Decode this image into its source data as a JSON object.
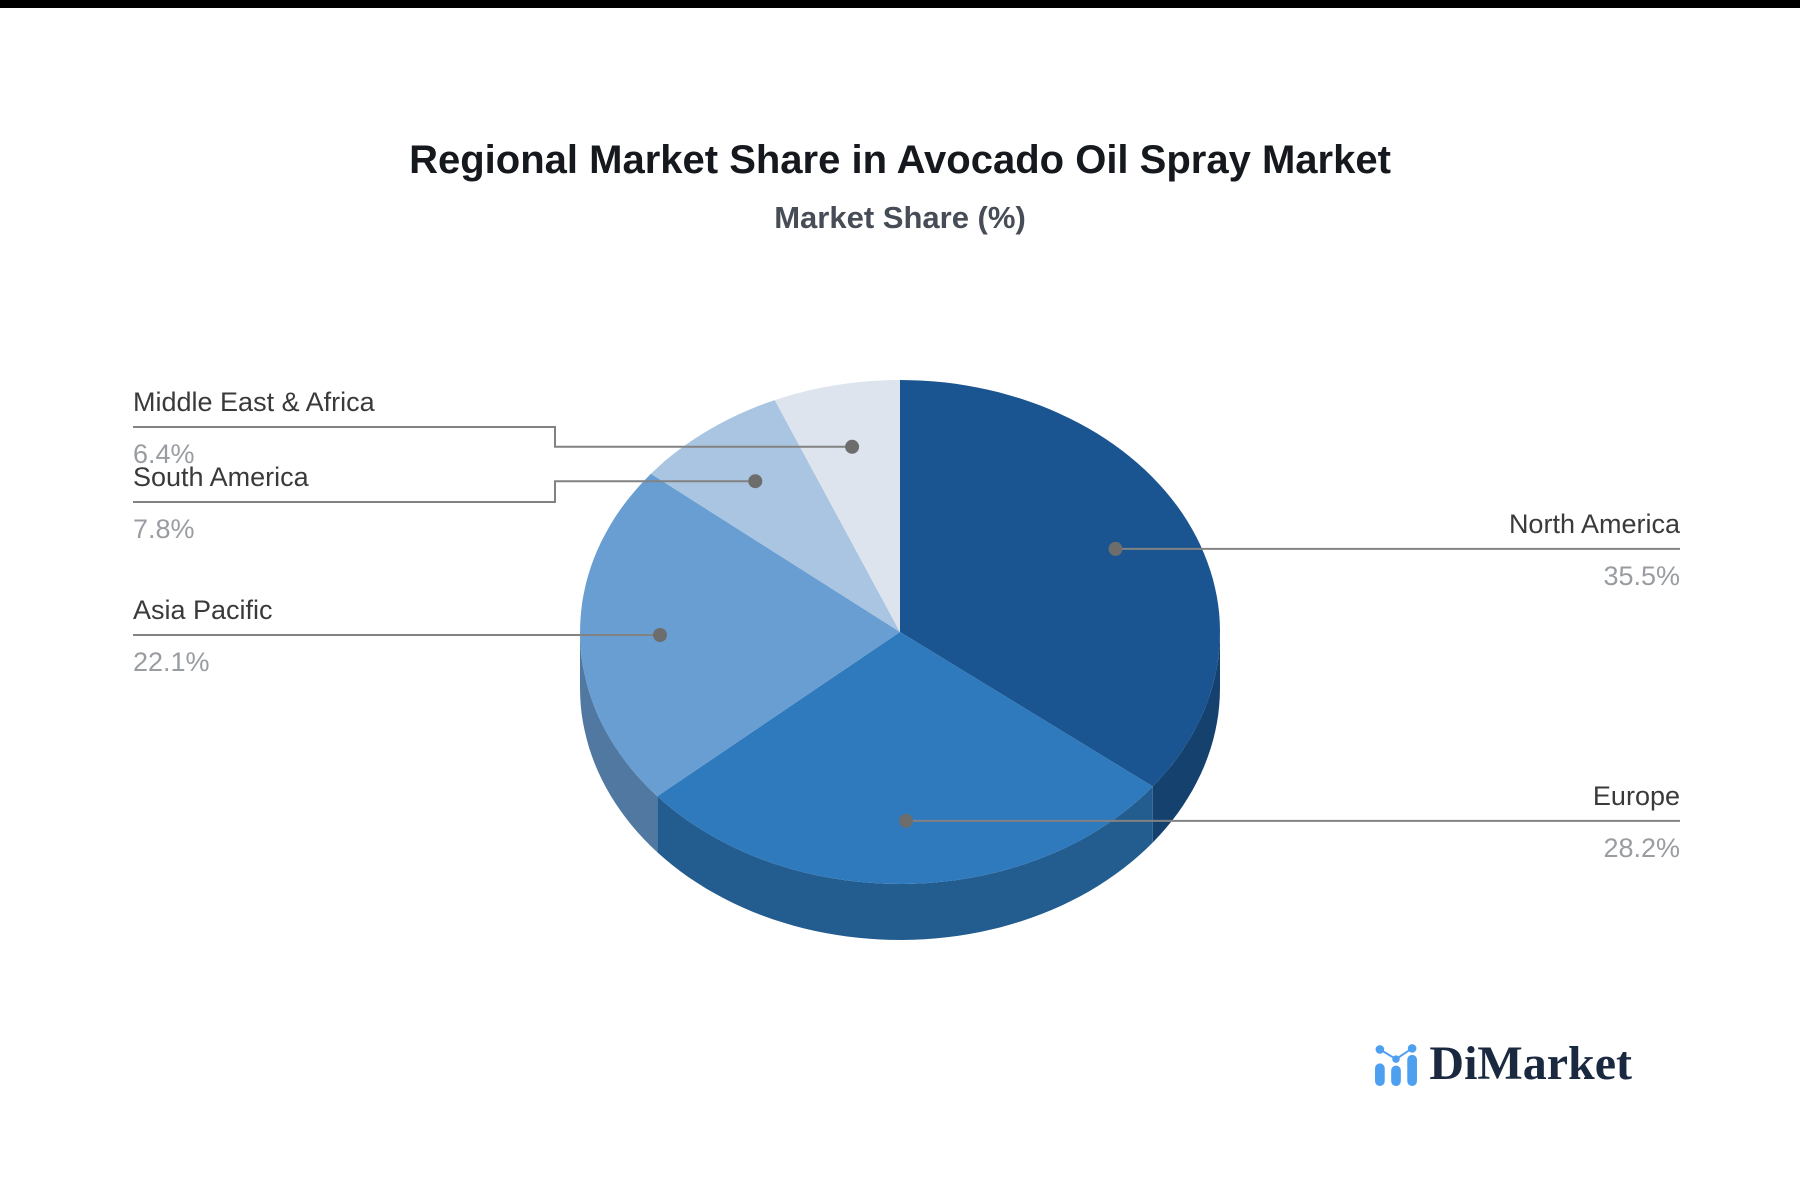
{
  "page": {
    "background_color": "#ffffff",
    "top_border_color": "#000000"
  },
  "chart_data": {
    "type": "pie",
    "style": "3d",
    "title": "Regional Market Share in Avocado Oil Spray Market",
    "subtitle": "Market Share (%)",
    "unit": "%",
    "start_angle_deg": 0,
    "direction": "clockwise",
    "total": 100.0,
    "series": [
      {
        "name": "North America",
        "value": 35.5,
        "value_label": "35.5%",
        "color": "#1b5591",
        "label_side": "right"
      },
      {
        "name": "Europe",
        "value": 28.2,
        "value_label": "28.2%",
        "color": "#2e7abd",
        "label_side": "right"
      },
      {
        "name": "Asia Pacific",
        "value": 22.1,
        "value_label": "22.1%",
        "color": "#699ed2",
        "label_side": "left"
      },
      {
        "name": "South America",
        "value": 7.8,
        "value_label": "7.8%",
        "color": "#aac5e2",
        "label_side": "left"
      },
      {
        "name": "Middle East & Africa",
        "value": 6.4,
        "value_label": "6.4%",
        "color": "#dde4ee",
        "label_side": "left"
      }
    ],
    "label_name_color": "#3a3a3a",
    "label_value_color": "#999da1",
    "leader_line_color": "#828282",
    "leader_dot_color": "#6d6d6d",
    "legend": "none"
  },
  "branding": {
    "logo_text": "DiMarket",
    "logo_icon": "mini-bar-line-chart-icon",
    "logo_icon_color": "#4d9ff0",
    "logo_text_color": "#1b2940"
  }
}
